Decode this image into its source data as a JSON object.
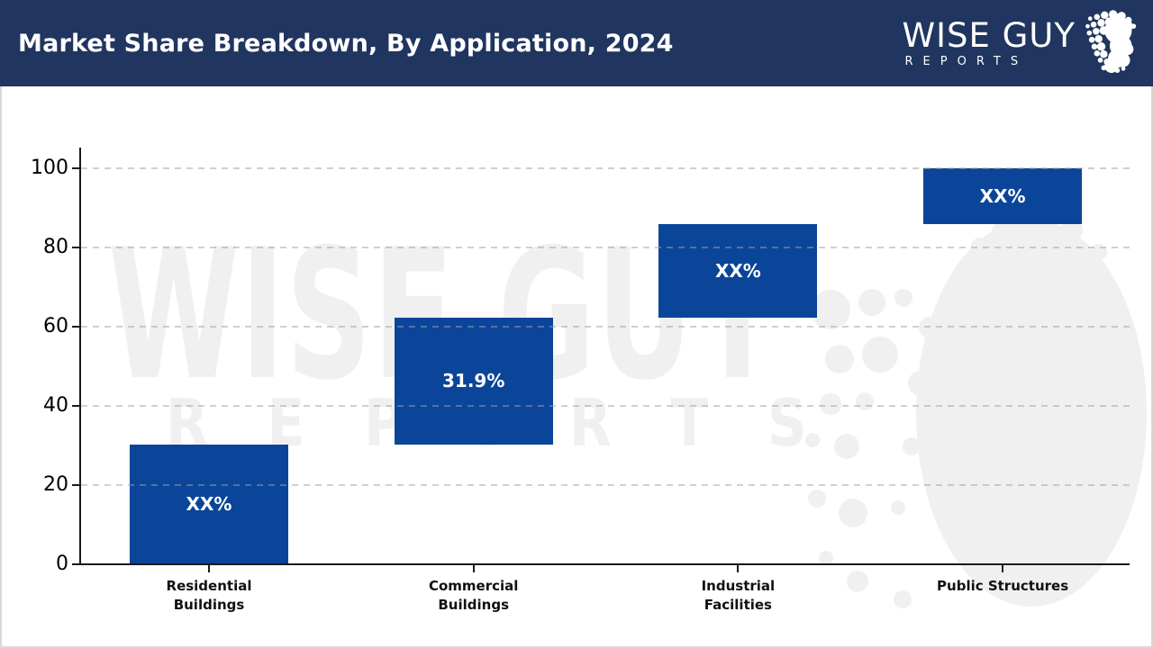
{
  "header": {
    "title": "Market Share Breakdown, By Application, 2024",
    "logo": {
      "line1": "WISE GUY",
      "line2": "REPORTS",
      "icon": "dotted-face-profile-icon"
    }
  },
  "watermark": {
    "line1": "WISE GUY",
    "line2": "R E P O R T S",
    "icon": "dotted-face-profile-icon"
  },
  "colors": {
    "header_bg": "#20355f",
    "bar": "#0b4599",
    "axis": "#1a1a1a",
    "grid": "#a0a0a0",
    "watermark": "#f0f0f1",
    "tick_text": "#000000",
    "bar_label": "#ffffff",
    "border": "#d8d8d8"
  },
  "chart_data": {
    "type": "bar",
    "subtype": "floating-waterfall",
    "title": "Market Share Breakdown, By Application, 2024",
    "categories": [
      "Residential Buildings",
      "Commercial Buildings",
      "Industrial Facilities",
      "Public Structures"
    ],
    "category_lines": [
      [
        "Residential",
        "Buildings"
      ],
      [
        "Commercial",
        "Buildings"
      ],
      [
        "Industrial",
        "Facilities"
      ],
      [
        "Public Structures"
      ]
    ],
    "segments": [
      {
        "category": "Residential Buildings",
        "start": 0,
        "end": 30.2,
        "value": 30.2,
        "label": "XX%"
      },
      {
        "category": "Commercial Buildings",
        "start": 30.2,
        "end": 62.1,
        "value": 31.9,
        "label": "31.9%"
      },
      {
        "category": "Industrial Facilities",
        "start": 62.1,
        "end": 85.8,
        "value": 23.7,
        "label": "XX%"
      },
      {
        "category": "Public Structures",
        "start": 85.8,
        "end": 100,
        "value": 14.2,
        "label": "XX%"
      }
    ],
    "total": 100,
    "xlabel": "",
    "ylabel": "",
    "ylim": [
      0,
      105
    ],
    "yticks": [
      0,
      20,
      40,
      60,
      80,
      100
    ],
    "grid": "horizontal-dashed",
    "legend": "none"
  }
}
